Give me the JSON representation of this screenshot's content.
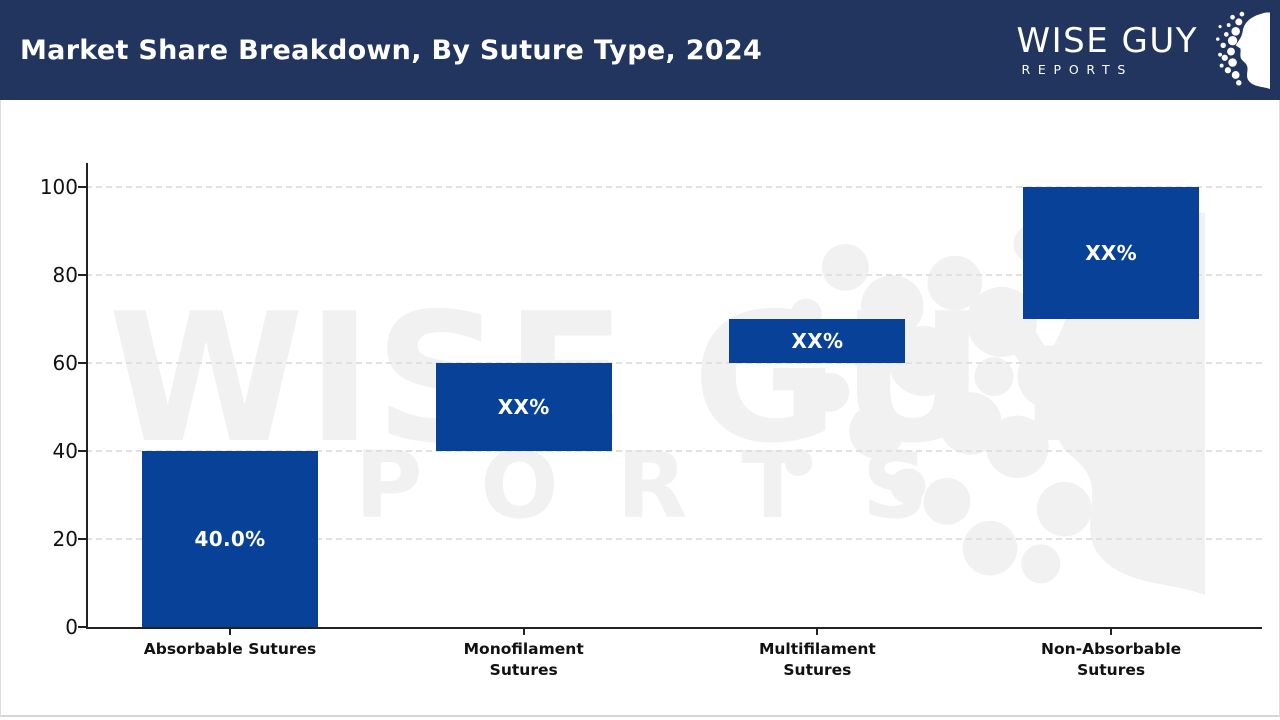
{
  "header": {
    "title": "Market Share Breakdown, By Suture Type, 2024",
    "logo": {
      "line1": "WISE GUY",
      "line2": "REPORTS"
    }
  },
  "watermark": {
    "line1": "WISE GUY",
    "line2": "PORTS"
  },
  "colors": {
    "header_bg": "#21355E",
    "bar": "#084298",
    "bar_label_text": "#ffffff",
    "grid": "#e1e1e1",
    "axis": "#222222",
    "watermark": "#f1f1f1"
  },
  "chart_data": {
    "type": "bar",
    "subtype": "waterfall",
    "title": "Market Share Breakdown, By Suture Type, 2024",
    "xlabel": "",
    "ylabel": "",
    "ylim": [
      0,
      105
    ],
    "yticks": [
      0,
      20,
      40,
      60,
      80,
      100
    ],
    "grid": "horizontal dashed",
    "legend": "none",
    "categories": [
      "Absorbable Sutures",
      "Monofilament Sutures",
      "Multifilament Sutures",
      "Non-Absorbable Sutures"
    ],
    "bars": [
      {
        "category": "Absorbable Sutures",
        "display": "Absorbable Sutures",
        "start": 0,
        "end": 40,
        "value": 40,
        "label": "40.0%"
      },
      {
        "category": "Monofilament Sutures",
        "display": "Monofilament\nSutures",
        "start": 40,
        "end": 60,
        "value": 20,
        "label": "XX%"
      },
      {
        "category": "Multifilament Sutures",
        "display": "Multifilament\nSutures",
        "start": 60,
        "end": 70,
        "value": 10,
        "label": "XX%"
      },
      {
        "category": "Non-Absorbable Sutures",
        "display": "Non-Absorbable\nSutures",
        "start": 70,
        "end": 100,
        "value": 30,
        "label": "XX%"
      }
    ]
  }
}
